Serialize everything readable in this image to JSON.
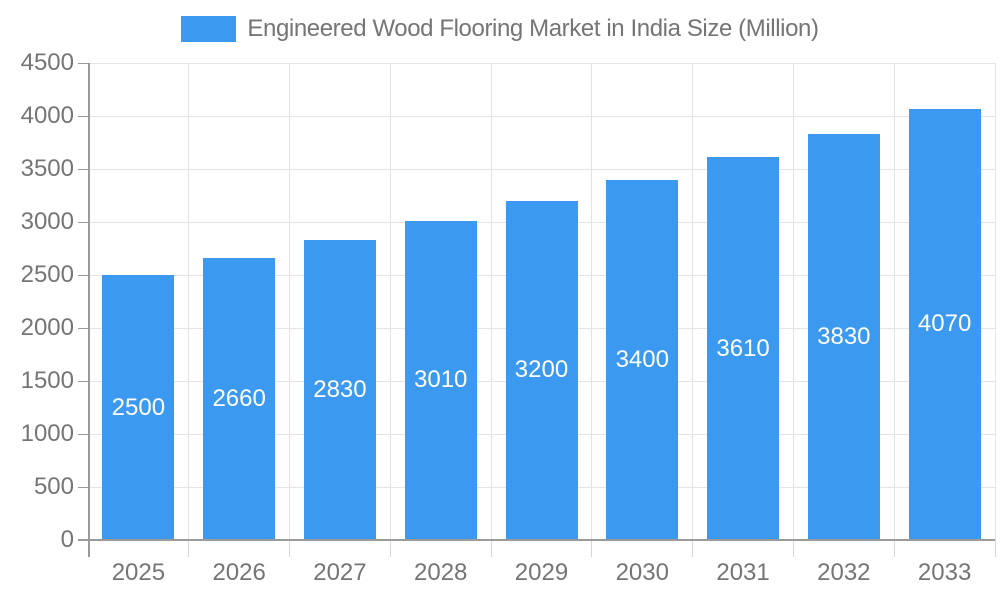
{
  "chart_data": {
    "type": "bar",
    "title": "Engineered Wood Flooring Market in India Size (Million)",
    "categories": [
      "2025",
      "2026",
      "2027",
      "2028",
      "2029",
      "2030",
      "2031",
      "2032",
      "2033"
    ],
    "values": [
      2500,
      2660,
      2830,
      3010,
      3200,
      3400,
      3610,
      3830,
      4070
    ],
    "bar_value_labels": [
      "2500",
      "2660",
      "2830",
      "3010",
      "3200",
      "3400",
      "3610",
      "3830",
      "4070"
    ],
    "xlabel": "",
    "ylabel": "",
    "ylim": [
      0,
      4500
    ],
    "ytick_step": 500,
    "yticks": [
      "0",
      "500",
      "1000",
      "1500",
      "2000",
      "2500",
      "3000",
      "3500",
      "4000",
      "4500"
    ],
    "grid": true,
    "legend_position": "top",
    "colors": {
      "bar": "#3b99f0",
      "value_label": "#ffffff",
      "axis_text": "#757575",
      "gridline": "#e4e4e4",
      "axis_line": "#9a9a9a"
    }
  },
  "legend": {
    "swatch_icon": "legend-swatch",
    "label": "Engineered Wood Flooring Market in India Size (Million)"
  }
}
